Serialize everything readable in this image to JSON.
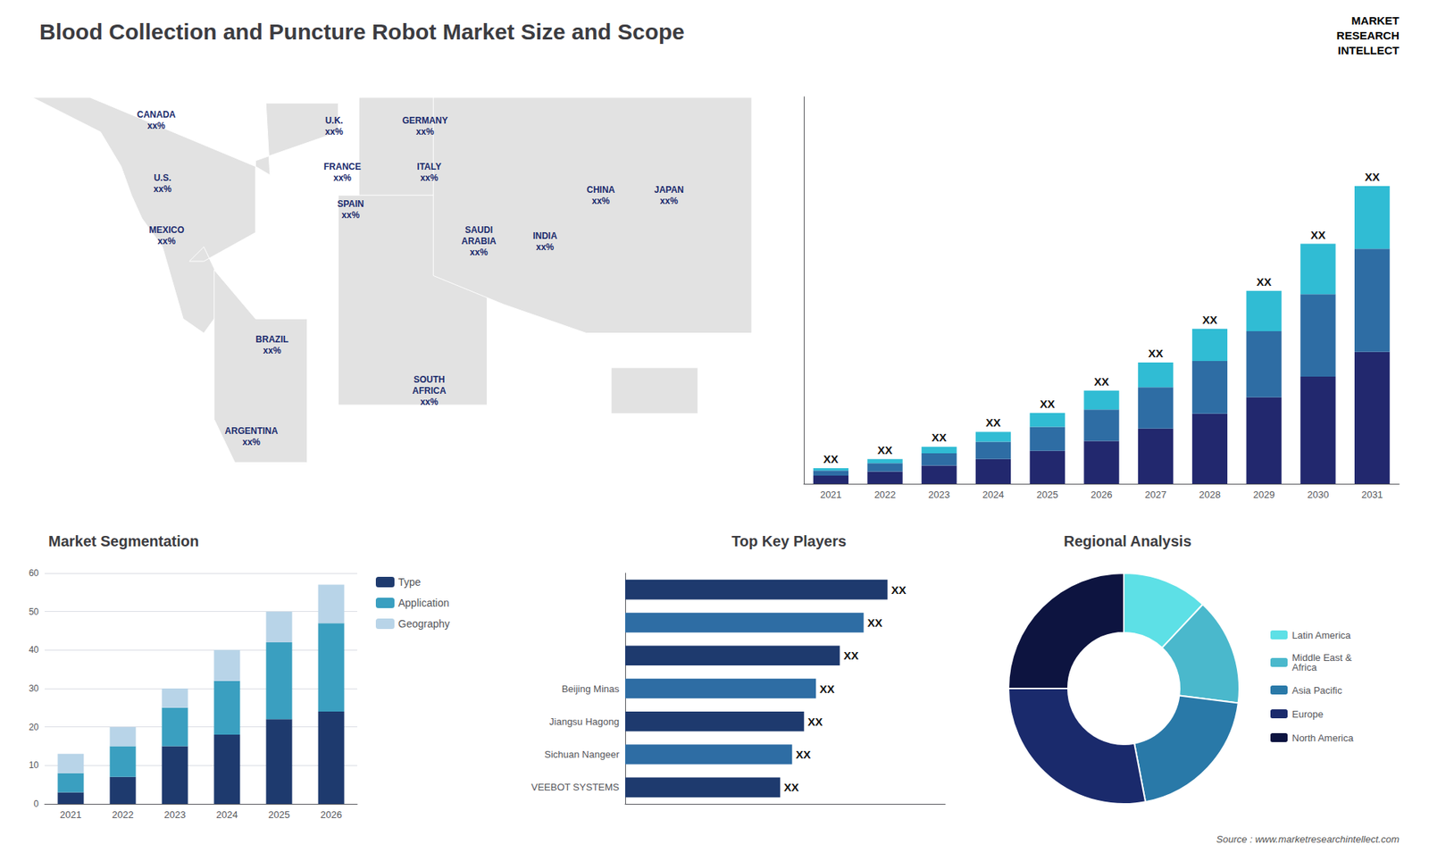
{
  "chart_data": [
    {
      "type": "bar",
      "title": "Blood Collection and Puncture Robot Market Size and Scope",
      "stacked": true,
      "categories": [
        "2021",
        "2022",
        "2023",
        "2024",
        "2025",
        "2026",
        "2027",
        "2028",
        "2029",
        "2030",
        "2031"
      ],
      "series": [
        {
          "color": "#22286e",
          "values": [
            1.0,
            1.5,
            2.2,
            3.0,
            4.0,
            5.2,
            6.7,
            8.5,
            10.5,
            13.0,
            16.0
          ]
        },
        {
          "color": "#2e6da4",
          "values": [
            0.6,
            1.0,
            1.5,
            2.1,
            2.9,
            3.8,
            5.0,
            6.4,
            8.0,
            10.0,
            12.5
          ]
        },
        {
          "color": "#30bcd4",
          "values": [
            0.3,
            0.5,
            0.8,
            1.2,
            1.7,
            2.3,
            3.0,
            3.9,
            4.9,
            6.1,
            7.6
          ]
        }
      ],
      "value_labels": [
        "XX",
        "XX",
        "XX",
        "XX",
        "XX",
        "XX",
        "XX",
        "XX",
        "XX",
        "XX",
        "XX"
      ],
      "ylim": [
        0,
        46.93
      ],
      "tick_labels": "x",
      "grid": false,
      "annotations": [
        "MARKET",
        "RESEARCH",
        "INTELLECT",
        "Source : www.marketresearchintellect.com"
      ]
    },
    {
      "type": "map",
      "color": "#1a2a6c",
      "annotations": [
        "CANADA\nxx%",
        "U.S.\nxx%",
        "MEXICO\nxx%",
        "BRAZIL\nxx%",
        "ARGENTINA\nxx%",
        "U.K.\nxx%",
        "FRANCE\nxx%",
        "SPAIN\nxx%",
        "GERMANY\nxx%",
        "ITALY\nxx%",
        "SAUDI\nARABIA\nxx%",
        "SOUTH\nAFRICA\nxx%",
        "CHINA\nxx%",
        "INDIA\nxx%",
        "JAPAN\nxx%"
      ]
    },
    {
      "type": "bar",
      "title": "Market Segmentation",
      "stacked": true,
      "categories": [
        "2021",
        "2022",
        "2023",
        "2024",
        "2025",
        "2026"
      ],
      "series": [
        {
          "name": "Type",
          "color": "#1e3a6e",
          "values": [
            3,
            7,
            15,
            18,
            22,
            24
          ]
        },
        {
          "name": "Application",
          "color": "#3a9fc0",
          "values": [
            5,
            8,
            10,
            14,
            20,
            23
          ]
        },
        {
          "name": "Geography",
          "color": "#b8d4e8",
          "values": [
            5,
            5,
            5,
            8,
            8,
            10
          ]
        }
      ],
      "ylim": [
        0,
        60
      ],
      "yticks": [
        0,
        10,
        20,
        30,
        40,
        50,
        60
      ],
      "grid": true,
      "legend": "right"
    },
    {
      "type": "bar",
      "title": "Top Key Players",
      "orientation": "horizontal",
      "categories": [
        "VEEBOT SYSTEMS",
        "Sichuan Nangeer",
        "Jiangsu Hagong",
        "Beijing Minas",
        null,
        null,
        null
      ],
      "values": [
        6.5,
        7.0,
        7.5,
        8.0,
        9.0,
        10.0,
        11.0
      ],
      "colors": [
        "#1e3a6e",
        "#2e6da4",
        "#1e3a6e",
        "#2e6da4",
        "#1e3a6e",
        "#2e6da4",
        "#1e3a6e"
      ],
      "value_labels": [
        "XX",
        "XX",
        "XX",
        "XX",
        "XX",
        "XX",
        "XX"
      ],
      "xlim": [
        0,
        13.42
      ],
      "tick_labels": "y",
      "grid": false
    },
    {
      "type": "pie",
      "title": "Regional Analysis",
      "categories": [
        "Latin America",
        "Middle East &\nAfrica",
        "Asia Pacific",
        "Europe",
        "North America"
      ],
      "values": [
        12,
        15,
        20,
        28,
        25
      ],
      "colors": [
        "#5de0e6",
        "#4ab8cc",
        "#2979a8",
        "#1a2a6c",
        "#0d1440"
      ],
      "legend": "right"
    }
  ]
}
